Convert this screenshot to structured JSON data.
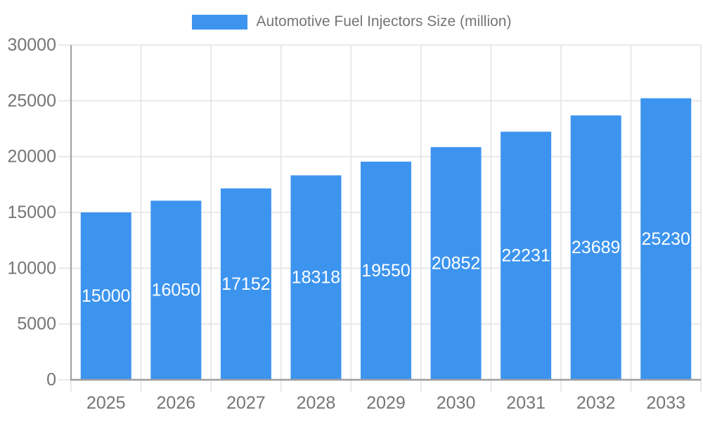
{
  "chart_data": {
    "type": "bar",
    "title": "Automotive Fuel Injectors Size (million)",
    "categories": [
      "2025",
      "2026",
      "2027",
      "2028",
      "2029",
      "2030",
      "2031",
      "2032",
      "2033"
    ],
    "values": [
      15000,
      16050,
      17152,
      18318,
      19550,
      20852,
      22231,
      23689,
      25230
    ],
    "series": [
      {
        "name": "Automotive Fuel Injectors Size (million)",
        "values": [
          15000,
          16050,
          17152,
          18318,
          19550,
          20852,
          22231,
          23689,
          25230
        ]
      }
    ],
    "xlabel": "",
    "ylabel": "",
    "ylim": [
      0,
      30000
    ],
    "yticks": [
      0,
      5000,
      10000,
      15000,
      20000,
      25000,
      30000
    ],
    "grid": true,
    "legend_position": "top",
    "value_label_position": "inside-center",
    "colors": {
      "bar": "#3D94EF",
      "value_label": "#ffffff",
      "axis_text": "#757575",
      "gridline": "#e6e6e6",
      "axis_line": "#9e9e9e",
      "background": "#ffffff"
    }
  }
}
